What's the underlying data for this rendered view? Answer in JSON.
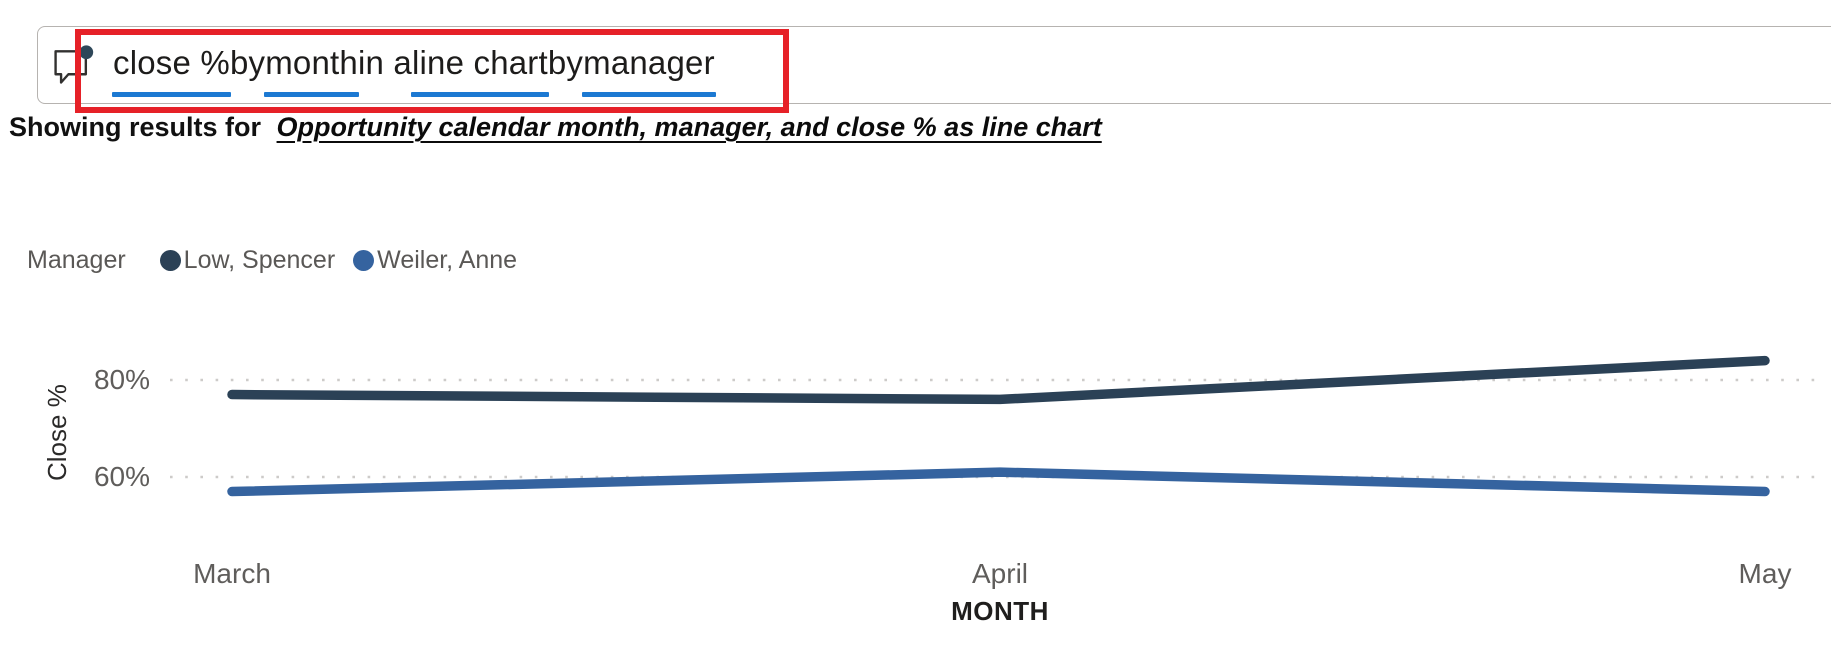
{
  "qna_box": {
    "icon": "qna-chat-icon",
    "query_parts": [
      {
        "text": "close %",
        "underlined": true
      },
      {
        "text": " by ",
        "underlined": false
      },
      {
        "text": "month",
        "underlined": true
      },
      {
        "text": " in a ",
        "underlined": false
      },
      {
        "text": "line chart",
        "underlined": true
      },
      {
        "text": " by ",
        "underlined": false
      },
      {
        "text": "manager",
        "underlined": true
      }
    ],
    "underline_color": "#1c79d2"
  },
  "annotation": {
    "type": "red-highlight-box",
    "color": "#e62128"
  },
  "result_line": {
    "prefix": "Showing results for",
    "interpretation": "Opportunity calendar month, manager, and close % as line chart"
  },
  "legend": {
    "title": "Manager",
    "position": "top-left"
  },
  "chart_data": {
    "type": "line",
    "x": [
      "March",
      "April",
      "May"
    ],
    "series": [
      {
        "name": "Low, Spencer",
        "color": "#2b4156",
        "values": [
          77,
          76,
          84
        ]
      },
      {
        "name": "Weiler, Anne",
        "color": "#35639f",
        "values": [
          57,
          61,
          57
        ]
      }
    ],
    "title": "",
    "xlabel": "MONTH",
    "ylabel": "Close %",
    "yticks": [
      {
        "label": "60%",
        "value": 60
      },
      {
        "label": "80%",
        "value": 80
      }
    ],
    "ylim": [
      50,
      90
    ],
    "grid": "dotted-horizontal",
    "gridline_color": "#cdcbc9",
    "legend_position": "top-left"
  }
}
